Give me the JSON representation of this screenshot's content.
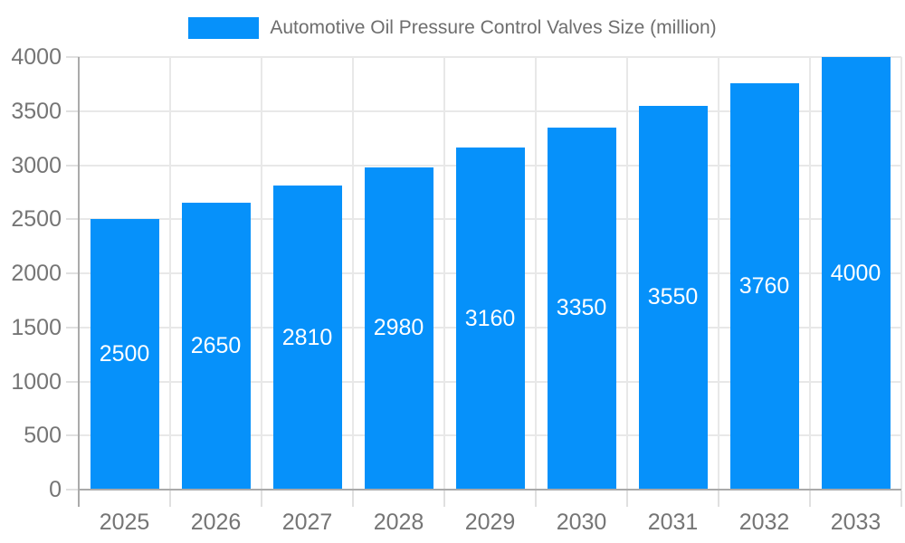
{
  "legend": {
    "label": "Automotive Oil Pressure Control Valves Size (million)"
  },
  "colors": {
    "bar": "#0691fa",
    "grid": "#e8e8e8",
    "tick": "#e0e0e0",
    "axis": "#aaaaaa",
    "axis_label": "#757575",
    "legend_text": "#6e6e6e",
    "bar_label": "#ffffff",
    "background": "#ffffff"
  },
  "chart_data": {
    "type": "bar",
    "title": "Automotive Oil Pressure Control Valves Size (million)",
    "categories": [
      "2025",
      "2026",
      "2027",
      "2028",
      "2029",
      "2030",
      "2031",
      "2032",
      "2033"
    ],
    "values": [
      2500,
      2650,
      2810,
      2980,
      3160,
      3350,
      3550,
      3760,
      4000
    ],
    "series": [
      {
        "name": "Automotive Oil Pressure Control Valves Size (million)",
        "values": [
          2500,
          2650,
          2810,
          2980,
          3160,
          3350,
          3550,
          3760,
          4000
        ]
      }
    ],
    "xlabel": "",
    "ylabel": "",
    "ylim": [
      0,
      4000
    ],
    "yticks": [
      0,
      500,
      1000,
      1500,
      2000,
      2500,
      3000,
      3500,
      4000
    ],
    "grid": true,
    "legend_position": "top-center",
    "value_labels": "inside-center"
  }
}
